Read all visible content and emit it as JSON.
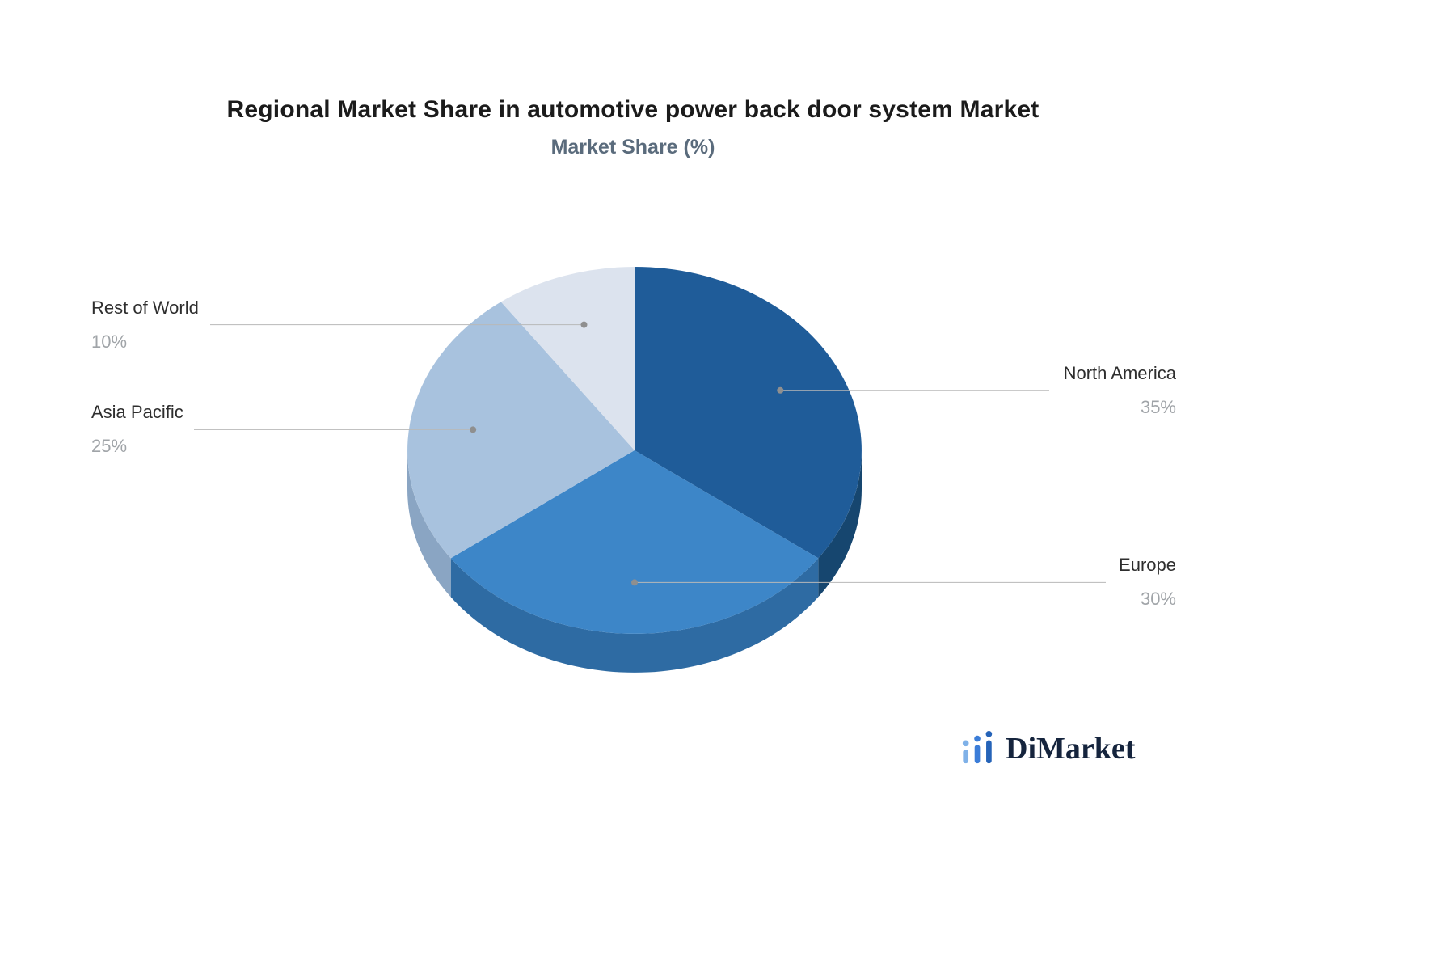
{
  "chart_data": {
    "type": "pie",
    "style": "3d",
    "title": "Regional Market Share in automotive power back door system Market",
    "subtitle": "Market Share (%)",
    "unit": "%",
    "labels": [
      "North America",
      "Europe",
      "Asia Pacific",
      "Rest of World"
    ],
    "values": [
      35,
      30,
      25,
      10
    ],
    "colors": [
      "#1f5c99",
      "#3d86c8",
      "#a8c2de",
      "#dce3ee"
    ],
    "depth_colors": [
      "#16466f",
      "#2e6ba3",
      "#8aa5c3",
      "#b9c3d6"
    ],
    "label_color": "#2e2e2e",
    "value_color": "#a0a4a8",
    "label_line_color": "#b8b8b8",
    "label_dot_color": "#8f8f8f",
    "legend_position": "none",
    "start_angle_deg": 0,
    "direction": "clockwise"
  },
  "branding": {
    "logo_text": "DiMarket",
    "logo_text_color": "#15243d",
    "logo_icon_colors": [
      "#7fb1e8",
      "#3b7dd8",
      "#2563b8"
    ]
  }
}
